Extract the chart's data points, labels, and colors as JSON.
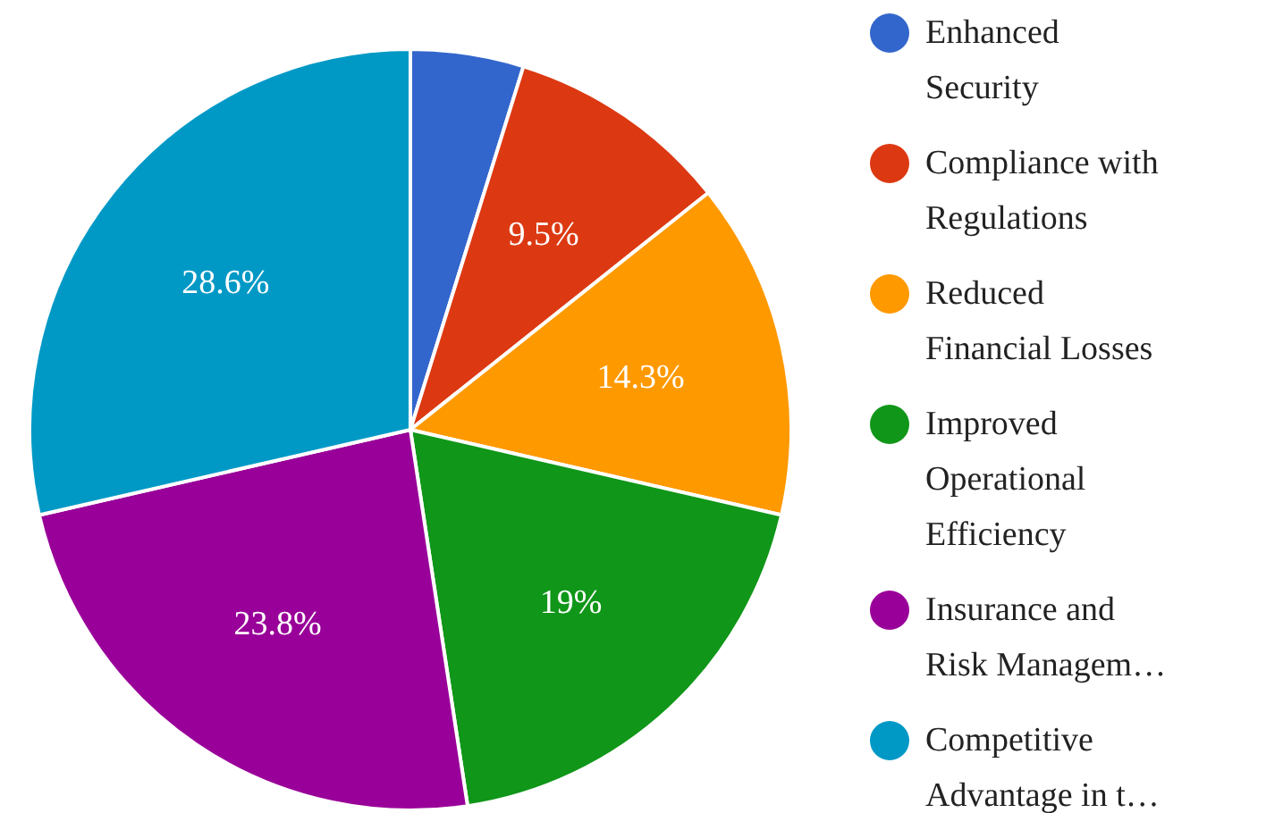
{
  "chart_data": {
    "type": "pie",
    "categories": [
      "Enhanced Security",
      "Compliance with Regulations",
      "Reduced Financial Losses",
      "Improved Operational Efficiency",
      "Insurance and Risk Managem…",
      "Competitive Advantage in t…"
    ],
    "values": [
      4.8,
      9.5,
      14.3,
      19,
      23.8,
      28.6
    ],
    "colors": [
      "#3366cc",
      "#dc3912",
      "#ff9900",
      "#109618",
      "#990099",
      "#0099c6"
    ],
    "value_labels": [
      null,
      "9.5%",
      "14.3%",
      "19%",
      "23.8%",
      "28.6%"
    ],
    "legend": "right"
  }
}
